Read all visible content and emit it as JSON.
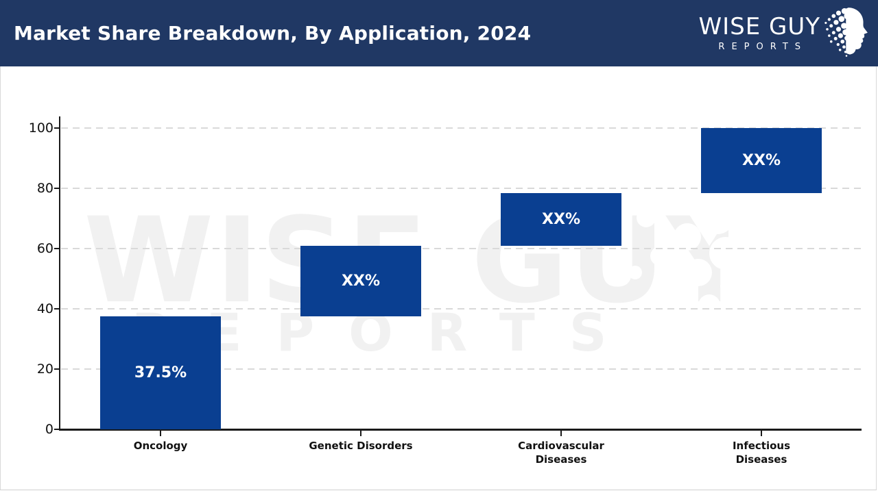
{
  "header": {
    "title": "Market Share Breakdown, By Application, 2024",
    "logo": {
      "line1": "WISE GUY",
      "line2": "REPORTS"
    }
  },
  "watermark": {
    "line1": "WISE GUY",
    "line2": "REPORTS"
  },
  "chart_data": {
    "type": "bar",
    "subtype": "waterfall",
    "title": "Market Share Breakdown, By Application, 2024",
    "categories": [
      "Oncology",
      "Genetic Disorders",
      "Cardiovascular\nDiseases",
      "Infectious\nDiseases"
    ],
    "bars": [
      {
        "category": "Oncology",
        "start": 0,
        "end": 37.5,
        "label": "37.5%"
      },
      {
        "category": "Genetic Disorders",
        "start": 37.5,
        "end": 61,
        "label": "XX%"
      },
      {
        "category": "Cardiovascular Diseases",
        "start": 61,
        "end": 78.5,
        "label": "XX%"
      },
      {
        "category": "Infectious Diseases",
        "start": 78.5,
        "end": 100,
        "label": "XX%"
      }
    ],
    "ylim": [
      0,
      100
    ],
    "yticks": [
      0,
      20,
      40,
      60,
      80,
      100
    ],
    "grid": "horizontal-dashed",
    "legend": "none",
    "bar_color": "#0a3f91",
    "bar_label_color": "#ffffff",
    "axis_color": "#1a1a1a",
    "grid_color": "#d9d9d9",
    "header_color": "#203864",
    "watermark_color": "#f1f1f1"
  }
}
